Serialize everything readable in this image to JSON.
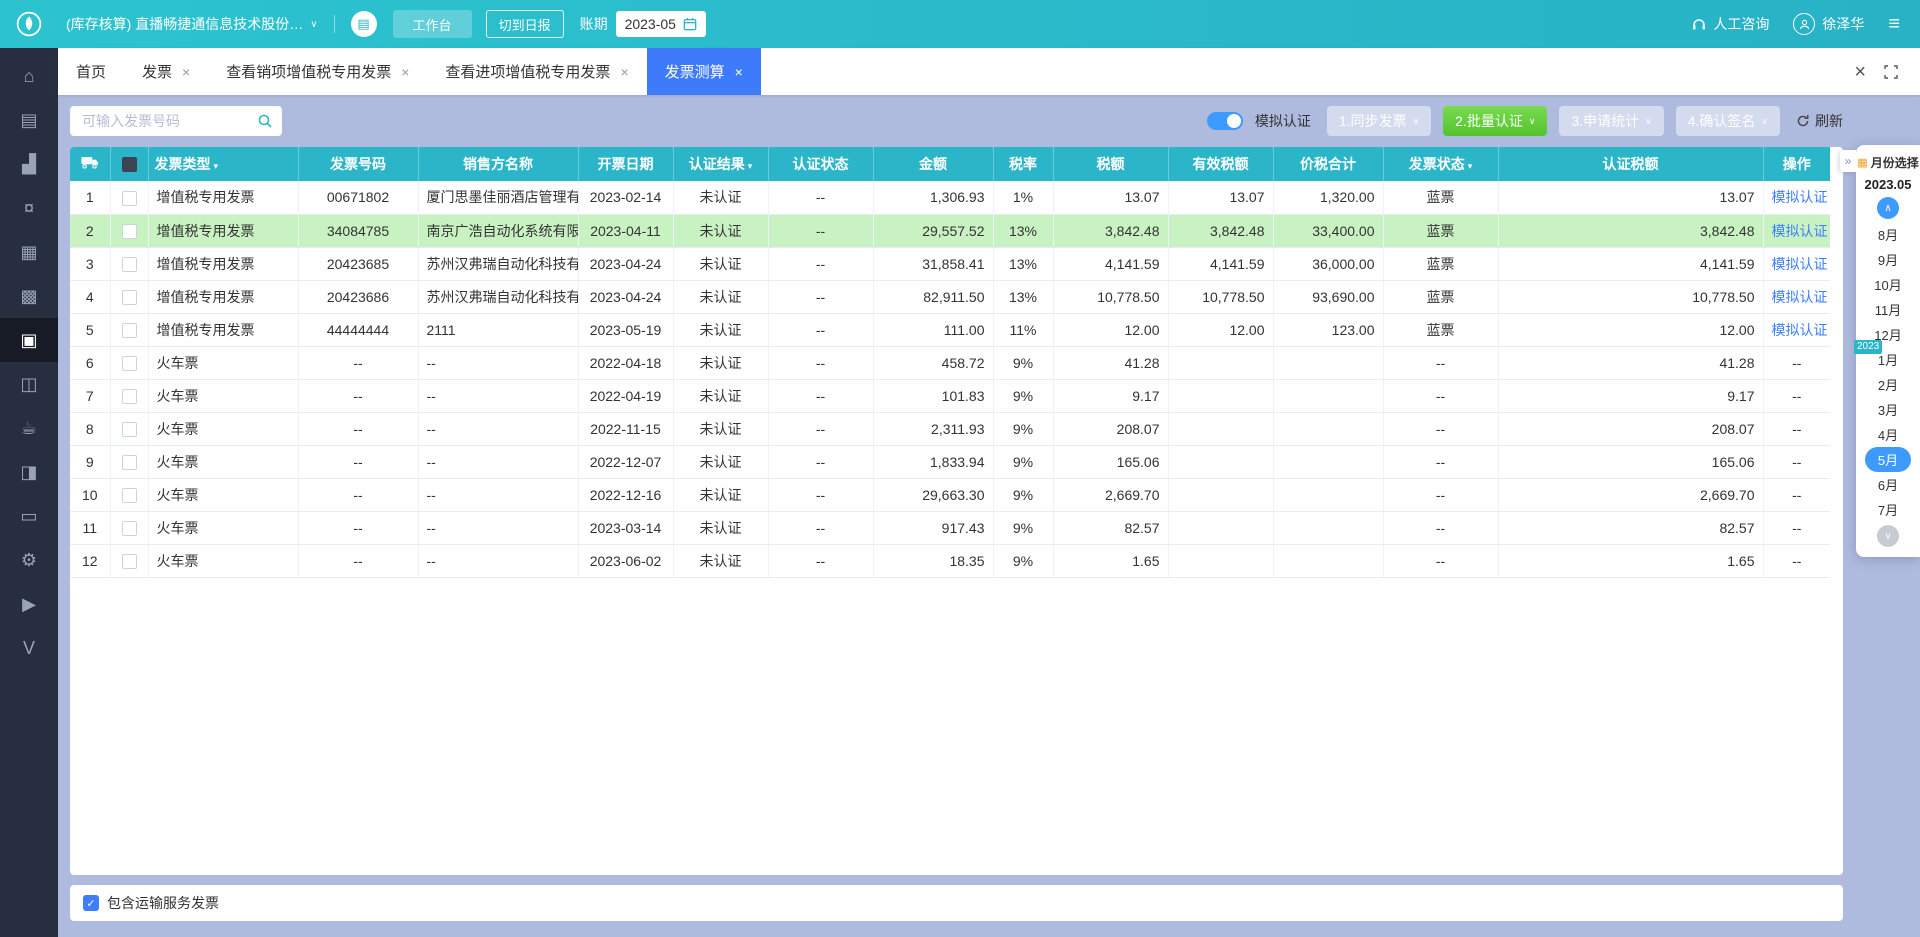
{
  "topbar": {
    "company_selector": "(库存核算) 直播畅捷通信息技术股份…",
    "workbench_button": "工作台",
    "switch_daily_button": "切到日报",
    "period_label": "账期",
    "period_value": "2023-05",
    "support_label": "人工咨询",
    "username": "徐泽华"
  },
  "sidebar": {
    "items": [
      {
        "name": "home",
        "icon": "home-icon",
        "glyph": "⌂"
      },
      {
        "name": "invoices",
        "icon": "receipt-icon",
        "glyph": "▤"
      },
      {
        "name": "reports",
        "icon": "chart-icon",
        "glyph": "▟"
      },
      {
        "name": "funds",
        "icon": "money-icon",
        "glyph": "¤"
      },
      {
        "name": "assets",
        "icon": "bank-icon",
        "glyph": "▦"
      },
      {
        "name": "modules",
        "icon": "grid-icon",
        "glyph": "▩"
      },
      {
        "name": "inventory",
        "icon": "cart-icon",
        "glyph": "▣",
        "active": true
      },
      {
        "name": "archive",
        "icon": "box-icon",
        "glyph": "◫"
      },
      {
        "name": "service",
        "icon": "coffee-icon",
        "glyph": "☕"
      },
      {
        "name": "checkout",
        "icon": "exit-icon",
        "glyph": "◨"
      },
      {
        "name": "storage",
        "icon": "package-icon",
        "glyph": "▭"
      },
      {
        "name": "settings",
        "icon": "gear-icon",
        "glyph": "⚙"
      },
      {
        "name": "media",
        "icon": "video-icon",
        "glyph": "▶"
      },
      {
        "name": "brand",
        "icon": "v-logo-icon",
        "glyph": "V"
      }
    ]
  },
  "tabs": {
    "items": [
      {
        "label": "首页",
        "closable": false,
        "active": false
      },
      {
        "label": "发票",
        "closable": true,
        "active": false
      },
      {
        "label": "查看销项增值税专用发票",
        "closable": true,
        "active": false
      },
      {
        "label": "查看进项增值税专用发票",
        "closable": true,
        "active": false
      },
      {
        "label": "发票测算",
        "closable": true,
        "active": true
      }
    ]
  },
  "toolbar": {
    "search_placeholder": "可输入发票号码",
    "simulate_toggle_label": "模拟认证",
    "action_buttons": [
      {
        "label": "1.同步发票",
        "variant": "ghost"
      },
      {
        "label": "2.批量认证",
        "variant": "green"
      },
      {
        "label": "3.申请统计",
        "variant": "ghost"
      },
      {
        "label": "4.确认签名",
        "variant": "ghost"
      }
    ],
    "refresh_label": "刷新"
  },
  "table": {
    "columns": [
      {
        "label": "发票类型",
        "sort": true
      },
      {
        "label": "发票号码"
      },
      {
        "label": "销售方名称"
      },
      {
        "label": "开票日期"
      },
      {
        "label": "认证结果",
        "sort": true
      },
      {
        "label": "认证状态"
      },
      {
        "label": "金额"
      },
      {
        "label": "税率"
      },
      {
        "label": "税额"
      },
      {
        "label": "有效税额"
      },
      {
        "label": "价税合计"
      },
      {
        "label": "发票状态",
        "sort": true
      },
      {
        "label": "认证税额"
      },
      {
        "label": "操作"
      }
    ],
    "rows": [
      {
        "index": 1,
        "type": "增值税专用发票",
        "number": "00671802",
        "seller": "厦门思墨佳丽酒店管理有限…",
        "date": "2023-02-14",
        "result": "未认证",
        "status": "--",
        "amount": "1,306.93",
        "rate": "1%",
        "tax": "13.07",
        "valid_tax": "13.07",
        "total": "1,320.00",
        "invoice_status": "蓝票",
        "auth_tax": "13.07",
        "action": "模拟认证",
        "highlight": false
      },
      {
        "index": 2,
        "type": "增值税专用发票",
        "number": "34084785",
        "seller": "南京广浩自动化系统有限责…",
        "date": "2023-04-11",
        "result": "未认证",
        "status": "--",
        "amount": "29,557.52",
        "rate": "13%",
        "tax": "3,842.48",
        "valid_tax": "3,842.48",
        "total": "33,400.00",
        "invoice_status": "蓝票",
        "auth_tax": "3,842.48",
        "action": "模拟认证",
        "highlight": true
      },
      {
        "index": 3,
        "type": "增值税专用发票",
        "number": "20423685",
        "seller": "苏州汉弗瑞自动化科技有限…",
        "date": "2023-04-24",
        "result": "未认证",
        "status": "--",
        "amount": "31,858.41",
        "rate": "13%",
        "tax": "4,141.59",
        "valid_tax": "4,141.59",
        "total": "36,000.00",
        "invoice_status": "蓝票",
        "auth_tax": "4,141.59",
        "action": "模拟认证",
        "highlight": false
      },
      {
        "index": 4,
        "type": "增值税专用发票",
        "number": "20423686",
        "seller": "苏州汉弗瑞自动化科技有限…",
        "date": "2023-04-24",
        "result": "未认证",
        "status": "--",
        "amount": "82,911.50",
        "rate": "13%",
        "tax": "10,778.50",
        "valid_tax": "10,778.50",
        "total": "93,690.00",
        "invoice_status": "蓝票",
        "auth_tax": "10,778.50",
        "action": "模拟认证",
        "highlight": false
      },
      {
        "index": 5,
        "type": "增值税专用发票",
        "number": "44444444",
        "seller": "2111",
        "date": "2023-05-19",
        "result": "未认证",
        "status": "--",
        "amount": "111.00",
        "rate": "11%",
        "tax": "12.00",
        "valid_tax": "12.00",
        "total": "123.00",
        "invoice_status": "蓝票",
        "auth_tax": "12.00",
        "action": "模拟认证",
        "highlight": false
      },
      {
        "index": 6,
        "type": "火车票",
        "number": "--",
        "seller": "--",
        "date": "2022-04-18",
        "result": "未认证",
        "status": "--",
        "amount": "458.72",
        "rate": "9%",
        "tax": "41.28",
        "valid_tax": "",
        "total": "",
        "invoice_status": "--",
        "auth_tax": "41.28",
        "action": "--",
        "highlight": false
      },
      {
        "index": 7,
        "type": "火车票",
        "number": "--",
        "seller": "--",
        "date": "2022-04-19",
        "result": "未认证",
        "status": "--",
        "amount": "101.83",
        "rate": "9%",
        "tax": "9.17",
        "valid_tax": "",
        "total": "",
        "invoice_status": "--",
        "auth_tax": "9.17",
        "action": "--",
        "highlight": false
      },
      {
        "index": 8,
        "type": "火车票",
        "number": "--",
        "seller": "--",
        "date": "2022-11-15",
        "result": "未认证",
        "status": "--",
        "amount": "2,311.93",
        "rate": "9%",
        "tax": "208.07",
        "valid_tax": "",
        "total": "",
        "invoice_status": "--",
        "auth_tax": "208.07",
        "action": "--",
        "highlight": false
      },
      {
        "index": 9,
        "type": "火车票",
        "number": "--",
        "seller": "--",
        "date": "2022-12-07",
        "result": "未认证",
        "status": "--",
        "amount": "1,833.94",
        "rate": "9%",
        "tax": "165.06",
        "valid_tax": "",
        "total": "",
        "invoice_status": "--",
        "auth_tax": "165.06",
        "action": "--",
        "highlight": false
      },
      {
        "index": 10,
        "type": "火车票",
        "number": "--",
        "seller": "--",
        "date": "2022-12-16",
        "result": "未认证",
        "status": "--",
        "amount": "29,663.30",
        "rate": "9%",
        "tax": "2,669.70",
        "valid_tax": "",
        "total": "",
        "invoice_status": "--",
        "auth_tax": "2,669.70",
        "action": "--",
        "highlight": false
      },
      {
        "index": 11,
        "type": "火车票",
        "number": "--",
        "seller": "--",
        "date": "2023-03-14",
        "result": "未认证",
        "status": "--",
        "amount": "917.43",
        "rate": "9%",
        "tax": "82.57",
        "valid_tax": "",
        "total": "",
        "invoice_status": "--",
        "auth_tax": "82.57",
        "action": "--",
        "highlight": false
      },
      {
        "index": 12,
        "type": "火车票",
        "number": "--",
        "seller": "--",
        "date": "2023-06-02",
        "result": "未认证",
        "status": "--",
        "amount": "18.35",
        "rate": "9%",
        "tax": "1.65",
        "valid_tax": "",
        "total": "",
        "invoice_status": "--",
        "auth_tax": "1.65",
        "action": "--",
        "highlight": false
      }
    ]
  },
  "month_panel": {
    "title": "月份选择",
    "current_period": "2023.05",
    "year_badge": "2023",
    "months": [
      {
        "label": "8月"
      },
      {
        "label": "9月"
      },
      {
        "label": "10月"
      },
      {
        "label": "11月"
      },
      {
        "label": "12月"
      },
      {
        "label": "1月",
        "year_start": true
      },
      {
        "label": "2月"
      },
      {
        "label": "3月"
      },
      {
        "label": "4月"
      },
      {
        "label": "5月",
        "active": true
      },
      {
        "label": "6月"
      },
      {
        "label": "7月"
      }
    ]
  },
  "footer": {
    "transport_checkbox_label": "包含运输服务发票",
    "checked": true
  },
  "icons": {
    "dropdown_caret": "∨",
    "sort_caret": "▾",
    "close": "×",
    "hamburger": "≡",
    "check": "✓",
    "chevron_up": "∧",
    "chevron_down": "∨",
    "collapse_right": "»",
    "clipboard": "▤",
    "calendar_glyph": "▦"
  },
  "colors": {
    "topbar_teal": "#2bb9c8",
    "accent_blue": "#3e7bfa",
    "green_button": "#5ecb3a",
    "table_header_teal": "#2bb5c8",
    "highlight_row_green": "#c9f2c2",
    "danger_red": "#e04545",
    "workspace_bg": "#aebbde",
    "month_active_blue": "#3d9bff"
  }
}
